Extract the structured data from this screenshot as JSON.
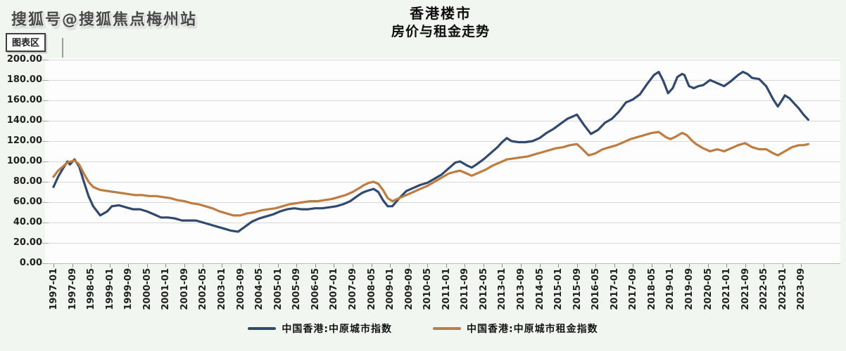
{
  "watermark": "搜狐号@搜狐焦点梅州站",
  "chart_area_tooltip": "图表区",
  "chart_data": {
    "type": "line",
    "title": "香港楼市",
    "subtitle": "房价与租金走势",
    "ylim": [
      0,
      200
    ],
    "ytick_step": 20,
    "ytick_labels": [
      "200.00",
      "180.00",
      "160.00",
      "140.00",
      "120.00",
      "100.00",
      "80.00",
      "60.00",
      "40.00",
      "20.00",
      "0.00"
    ],
    "xtick_labels": [
      "1997-01",
      "1997-09",
      "1998-05",
      "1999-01",
      "1999-09",
      "2000-05",
      "2001-01",
      "2001-09",
      "2002-05",
      "2003-01",
      "2003-09",
      "2004-05",
      "2005-01",
      "2005-09",
      "2006-05",
      "2007-01",
      "2007-09",
      "2008-05",
      "2009-01",
      "2009-09",
      "2010-05",
      "2011-01",
      "2011-09",
      "2012-05",
      "2013-01",
      "2013-09",
      "2014-05",
      "2015-01",
      "2015-09",
      "2016-05",
      "2017-01",
      "2017-09",
      "2018-05",
      "2019-01",
      "2019-09",
      "2020-05",
      "2021-01",
      "2021-09",
      "2022-05",
      "2023-01",
      "2023-09"
    ],
    "grid": "horizontal",
    "legend_position": "bottom",
    "series": [
      {
        "name": "中国香港:中原城市指数",
        "color": "#31496f",
        "points": [
          [
            "1997-01",
            75
          ],
          [
            "1997-03",
            85
          ],
          [
            "1997-05",
            93
          ],
          [
            "1997-07",
            100
          ],
          [
            "1997-08",
            97
          ],
          [
            "1997-10",
            102
          ],
          [
            "1997-12",
            95
          ],
          [
            "1998-02",
            80
          ],
          [
            "1998-04",
            66
          ],
          [
            "1998-06",
            56
          ],
          [
            "1998-09",
            47
          ],
          [
            "1998-12",
            51
          ],
          [
            "1999-02",
            56
          ],
          [
            "1999-05",
            57
          ],
          [
            "1999-08",
            55
          ],
          [
            "1999-11",
            53
          ],
          [
            "2000-02",
            53
          ],
          [
            "2000-05",
            51
          ],
          [
            "2000-08",
            48
          ],
          [
            "2000-11",
            45
          ],
          [
            "2001-02",
            45
          ],
          [
            "2001-05",
            44
          ],
          [
            "2001-08",
            42
          ],
          [
            "2001-11",
            42
          ],
          [
            "2002-02",
            42
          ],
          [
            "2002-05",
            40
          ],
          [
            "2002-08",
            38
          ],
          [
            "2002-11",
            36
          ],
          [
            "2003-02",
            34
          ],
          [
            "2003-05",
            32
          ],
          [
            "2003-08",
            31
          ],
          [
            "2003-11",
            36
          ],
          [
            "2004-02",
            41
          ],
          [
            "2004-05",
            44
          ],
          [
            "2004-08",
            46
          ],
          [
            "2004-11",
            48
          ],
          [
            "2005-02",
            51
          ],
          [
            "2005-05",
            53
          ],
          [
            "2005-08",
            54
          ],
          [
            "2005-11",
            53
          ],
          [
            "2006-02",
            53
          ],
          [
            "2006-05",
            54
          ],
          [
            "2006-08",
            54
          ],
          [
            "2006-11",
            55
          ],
          [
            "2007-02",
            56
          ],
          [
            "2007-05",
            58
          ],
          [
            "2007-08",
            61
          ],
          [
            "2007-11",
            66
          ],
          [
            "2008-01",
            69
          ],
          [
            "2008-03",
            71
          ],
          [
            "2008-06",
            73
          ],
          [
            "2008-08",
            70
          ],
          [
            "2008-10",
            62
          ],
          [
            "2008-12",
            56
          ],
          [
            "2009-02",
            56
          ],
          [
            "2009-05",
            64
          ],
          [
            "2009-08",
            71
          ],
          [
            "2009-11",
            74
          ],
          [
            "2010-02",
            77
          ],
          [
            "2010-05",
            79
          ],
          [
            "2010-08",
            83
          ],
          [
            "2010-11",
            87
          ],
          [
            "2011-02",
            93
          ],
          [
            "2011-05",
            99
          ],
          [
            "2011-07",
            100
          ],
          [
            "2011-10",
            96
          ],
          [
            "2011-12",
            94
          ],
          [
            "2012-02",
            97
          ],
          [
            "2012-05",
            102
          ],
          [
            "2012-08",
            108
          ],
          [
            "2012-11",
            114
          ],
          [
            "2013-01",
            119
          ],
          [
            "2013-03",
            123
          ],
          [
            "2013-05",
            120
          ],
          [
            "2013-08",
            119
          ],
          [
            "2013-11",
            119
          ],
          [
            "2014-02",
            120
          ],
          [
            "2014-05",
            123
          ],
          [
            "2014-08",
            128
          ],
          [
            "2014-11",
            132
          ],
          [
            "2015-02",
            137
          ],
          [
            "2015-05",
            142
          ],
          [
            "2015-09",
            146
          ],
          [
            "2015-12",
            136
          ],
          [
            "2016-03",
            127
          ],
          [
            "2016-06",
            131
          ],
          [
            "2016-09",
            138
          ],
          [
            "2016-12",
            142
          ],
          [
            "2017-03",
            149
          ],
          [
            "2017-06",
            158
          ],
          [
            "2017-09",
            161
          ],
          [
            "2017-12",
            166
          ],
          [
            "2018-03",
            176
          ],
          [
            "2018-06",
            185
          ],
          [
            "2018-08",
            188
          ],
          [
            "2018-10",
            179
          ],
          [
            "2018-12",
            167
          ],
          [
            "2019-02",
            172
          ],
          [
            "2019-04",
            183
          ],
          [
            "2019-06",
            186
          ],
          [
            "2019-07",
            185
          ],
          [
            "2019-09",
            174
          ],
          [
            "2019-11",
            172
          ],
          [
            "2020-01",
            174
          ],
          [
            "2020-03",
            175
          ],
          [
            "2020-06",
            180
          ],
          [
            "2020-09",
            177
          ],
          [
            "2020-12",
            174
          ],
          [
            "2021-03",
            179
          ],
          [
            "2021-06",
            185
          ],
          [
            "2021-08",
            188
          ],
          [
            "2021-10",
            186
          ],
          [
            "2021-12",
            182
          ],
          [
            "2022-03",
            181
          ],
          [
            "2022-06",
            174
          ],
          [
            "2022-09",
            161
          ],
          [
            "2022-11",
            154
          ],
          [
            "2023-01",
            161
          ],
          [
            "2023-02",
            165
          ],
          [
            "2023-04",
            162
          ],
          [
            "2023-06",
            157
          ],
          [
            "2023-08",
            152
          ],
          [
            "2023-10",
            146
          ],
          [
            "2023-12",
            141
          ]
        ]
      },
      {
        "name": "中国香港:中原城市租金指数",
        "color": "#bf7c40",
        "points": [
          [
            "1997-01",
            85
          ],
          [
            "1997-03",
            91
          ],
          [
            "1997-05",
            95
          ],
          [
            "1997-07",
            99
          ],
          [
            "1997-10",
            101
          ],
          [
            "1997-12",
            97
          ],
          [
            "1998-02",
            88
          ],
          [
            "1998-04",
            80
          ],
          [
            "1998-06",
            75
          ],
          [
            "1998-09",
            72
          ],
          [
            "1998-12",
            71
          ],
          [
            "1999-03",
            70
          ],
          [
            "1999-06",
            69
          ],
          [
            "1999-09",
            68
          ],
          [
            "1999-12",
            67
          ],
          [
            "2000-03",
            67
          ],
          [
            "2000-06",
            66
          ],
          [
            "2000-09",
            66
          ],
          [
            "2000-12",
            65
          ],
          [
            "2001-03",
            64
          ],
          [
            "2001-06",
            62
          ],
          [
            "2001-09",
            61
          ],
          [
            "2001-12",
            59
          ],
          [
            "2002-03",
            58
          ],
          [
            "2002-06",
            56
          ],
          [
            "2002-09",
            54
          ],
          [
            "2002-12",
            51
          ],
          [
            "2003-03",
            49
          ],
          [
            "2003-06",
            47
          ],
          [
            "2003-09",
            47
          ],
          [
            "2003-12",
            49
          ],
          [
            "2004-03",
            50
          ],
          [
            "2004-06",
            52
          ],
          [
            "2004-09",
            53
          ],
          [
            "2004-12",
            54
          ],
          [
            "2005-03",
            56
          ],
          [
            "2005-06",
            58
          ],
          [
            "2005-09",
            59
          ],
          [
            "2005-12",
            60
          ],
          [
            "2006-03",
            61
          ],
          [
            "2006-06",
            61
          ],
          [
            "2006-09",
            62
          ],
          [
            "2006-12",
            63
          ],
          [
            "2007-03",
            65
          ],
          [
            "2007-06",
            67
          ],
          [
            "2007-09",
            70
          ],
          [
            "2007-12",
            74
          ],
          [
            "2008-02",
            77
          ],
          [
            "2008-04",
            79
          ],
          [
            "2008-06",
            80
          ],
          [
            "2008-08",
            78
          ],
          [
            "2008-10",
            72
          ],
          [
            "2008-12",
            64
          ],
          [
            "2009-02",
            61
          ],
          [
            "2009-05",
            64
          ],
          [
            "2009-08",
            67
          ],
          [
            "2009-11",
            70
          ],
          [
            "2010-02",
            73
          ],
          [
            "2010-05",
            76
          ],
          [
            "2010-08",
            80
          ],
          [
            "2010-11",
            84
          ],
          [
            "2011-02",
            88
          ],
          [
            "2011-05",
            90
          ],
          [
            "2011-07",
            91
          ],
          [
            "2011-10",
            88
          ],
          [
            "2011-12",
            86
          ],
          [
            "2012-03",
            89
          ],
          [
            "2012-06",
            92
          ],
          [
            "2012-09",
            96
          ],
          [
            "2012-12",
            99
          ],
          [
            "2013-03",
            102
          ],
          [
            "2013-06",
            103
          ],
          [
            "2013-09",
            104
          ],
          [
            "2013-12",
            105
          ],
          [
            "2014-03",
            107
          ],
          [
            "2014-06",
            109
          ],
          [
            "2014-09",
            111
          ],
          [
            "2014-12",
            113
          ],
          [
            "2015-03",
            114
          ],
          [
            "2015-06",
            116
          ],
          [
            "2015-09",
            117
          ],
          [
            "2015-11",
            113
          ],
          [
            "2016-02",
            106
          ],
          [
            "2016-05",
            108
          ],
          [
            "2016-08",
            112
          ],
          [
            "2016-11",
            114
          ],
          [
            "2017-02",
            116
          ],
          [
            "2017-05",
            119
          ],
          [
            "2017-08",
            122
          ],
          [
            "2017-11",
            124
          ],
          [
            "2018-02",
            126
          ],
          [
            "2018-05",
            128
          ],
          [
            "2018-08",
            129
          ],
          [
            "2018-11",
            124
          ],
          [
            "2019-01",
            122
          ],
          [
            "2019-03",
            124
          ],
          [
            "2019-06",
            128
          ],
          [
            "2019-08",
            126
          ],
          [
            "2019-10",
            121
          ],
          [
            "2019-12",
            117
          ],
          [
            "2020-03",
            113
          ],
          [
            "2020-06",
            110
          ],
          [
            "2020-09",
            112
          ],
          [
            "2020-12",
            110
          ],
          [
            "2021-03",
            113
          ],
          [
            "2021-06",
            116
          ],
          [
            "2021-09",
            118
          ],
          [
            "2021-12",
            114
          ],
          [
            "2022-03",
            112
          ],
          [
            "2022-06",
            112
          ],
          [
            "2022-09",
            108
          ],
          [
            "2022-11",
            106
          ],
          [
            "2023-02",
            110
          ],
          [
            "2023-05",
            114
          ],
          [
            "2023-08",
            116
          ],
          [
            "2023-10",
            116
          ],
          [
            "2023-12",
            117
          ]
        ]
      }
    ]
  }
}
